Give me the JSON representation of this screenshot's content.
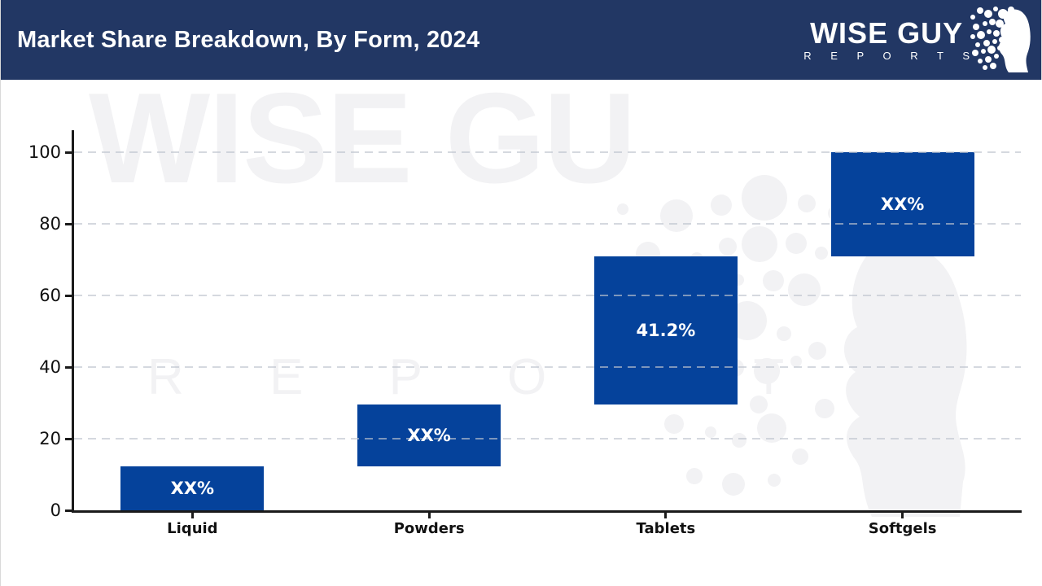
{
  "header": {
    "title": "Market Share Breakdown, By Form, 2024",
    "brand": {
      "name": "WISE GUY",
      "reports": "REPORTS"
    }
  },
  "watermark": {
    "text": "WISE GU",
    "sub": "REPORTS"
  },
  "chart_data": {
    "type": "bar",
    "subtype": "floating-waterfall",
    "title": "Market Share Breakdown, By Form, 2024",
    "categories": [
      "Liquid",
      "Powders",
      "Tablets",
      "Softgels"
    ],
    "segments": [
      {
        "category": "Liquid",
        "start": 0,
        "end": 12.3,
        "value_label": "XX%"
      },
      {
        "category": "Powders",
        "start": 12.3,
        "end": 29.6,
        "value_label": "XX%"
      },
      {
        "category": "Tablets",
        "start": 29.6,
        "end": 70.8,
        "value_label": "41.2%"
      },
      {
        "category": "Softgels",
        "start": 70.8,
        "end": 100,
        "value_label": "XX%"
      }
    ],
    "yticks": [
      0,
      20,
      40,
      60,
      80,
      100
    ],
    "ylim": [
      0,
      106
    ],
    "xlabel": "",
    "ylabel": "",
    "grid": "horizontal-dashed-over-bars",
    "legend": "none",
    "bar_color": "#05429b",
    "bar_label_color": "#ffffff",
    "axis_color": "#1a1a1a",
    "grid_color": "#d8d8d8"
  },
  "colors": {
    "header_bg": "#223764",
    "header_text": "#ffffff",
    "bar": "#05429b",
    "watermark": "#f2f2f4",
    "background": "#ffffff"
  }
}
